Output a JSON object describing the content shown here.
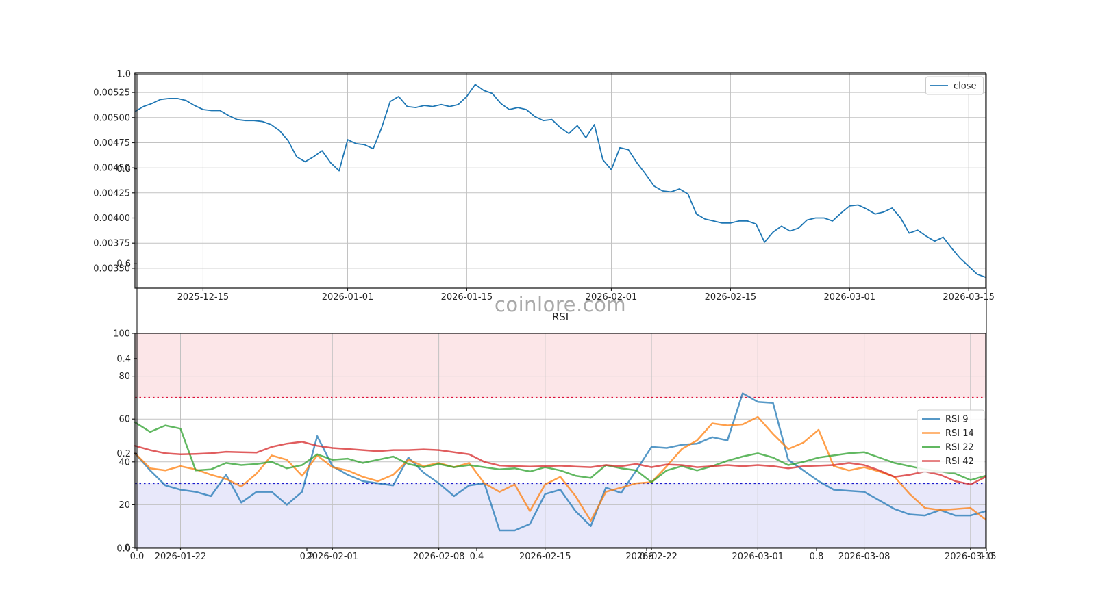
{
  "watermark": "coinlore.com",
  "colors": {
    "close": "#1f77b4",
    "rsi9": "#1f77b4",
    "rsi14": "#ff7f0e",
    "rsi22": "#2ca02c",
    "rs42": "#d62728",
    "rsi42": "#d62728",
    "overbought_band": "rgba(235,60,75,0.13)",
    "oversold_band": "rgba(80,75,220,0.13)",
    "overbought_line": "#dc143c",
    "oversold_line": "#1a1acd",
    "grid": "#c2c2c2",
    "spine": "#1b1b1b",
    "tick_text": "#262626",
    "watermark_text": "#9b9b9b",
    "legend_border": "#cccccc"
  },
  "overlay_axis": {
    "x_tick_labels": [
      "0.0",
      "0.2",
      "0.4",
      "0.6",
      "0.8",
      "1.0"
    ],
    "y_tick_labels": [
      "1.0",
      "0.8",
      "0.6",
      "0.4",
      "0.2",
      "0.0"
    ]
  },
  "chart_data": [
    {
      "type": "line",
      "title": "",
      "x_start_date": "2025-12-07",
      "x_end_date": "2026-03-16",
      "ylim": [
        0.003302,
        0.005448
      ],
      "grid": true,
      "legend": {
        "position": "upper right",
        "items": [
          {
            "label": "close",
            "color_key": "close"
          }
        ]
      },
      "y_ticks": [
        {
          "label": "0.00350",
          "value": 0.0035
        },
        {
          "label": "0.00375",
          "value": 0.00375
        },
        {
          "label": "0.00400",
          "value": 0.004
        },
        {
          "label": "0.00425",
          "value": 0.00425
        },
        {
          "label": "0.00450",
          "value": 0.0045
        },
        {
          "label": "0.00475",
          "value": 0.00475
        },
        {
          "label": "0.00500",
          "value": 0.005
        },
        {
          "label": "0.00525",
          "value": 0.00525
        }
      ],
      "x_ticks": [
        {
          "label": "2025-12-15",
          "day": 8
        },
        {
          "label": "2026-01-01",
          "day": 25
        },
        {
          "label": "2026-01-15",
          "day": 39
        },
        {
          "label": "2026-02-01",
          "day": 56
        },
        {
          "label": "2026-02-15",
          "day": 70
        },
        {
          "label": "2026-03-01",
          "day": 84
        },
        {
          "label": "2026-03-15",
          "day": 98
        }
      ],
      "series": [
        {
          "name": "close",
          "color_key": "close",
          "width": 1.8,
          "opacity": 1,
          "values": [
            0.00506,
            0.00511,
            0.00514,
            0.00518,
            0.00519,
            0.00519,
            0.00517,
            0.00512,
            0.00508,
            0.00507,
            0.00507,
            0.00502,
            0.00498,
            0.00497,
            0.00497,
            0.00496,
            0.00493,
            0.00487,
            0.00477,
            0.00461,
            0.00456,
            0.00461,
            0.00467,
            0.00455,
            0.00447,
            0.00478,
            0.00474,
            0.00473,
            0.00469,
            0.0049,
            0.00516,
            0.00521,
            0.00511,
            0.0051,
            0.00512,
            0.00511,
            0.00513,
            0.00511,
            0.00513,
            0.00521,
            0.00533,
            0.00527,
            0.00524,
            0.00514,
            0.00508,
            0.0051,
            0.00508,
            0.00501,
            0.00497,
            0.00498,
            0.0049,
            0.00484,
            0.00492,
            0.0048,
            0.00493,
            0.00458,
            0.00448,
            0.0047,
            0.00468,
            0.00455,
            0.00444,
            0.00432,
            0.00427,
            0.00426,
            0.00429,
            0.00424,
            0.00404,
            0.00399,
            0.00397,
            0.00395,
            0.00395,
            0.00397,
            0.00397,
            0.00394,
            0.00376,
            0.00386,
            0.00392,
            0.00387,
            0.0039,
            0.00398,
            0.004,
            0.004,
            0.00397,
            0.00405,
            0.00412,
            0.00413,
            0.00409,
            0.00404,
            0.00406,
            0.0041,
            0.004,
            0.00385,
            0.00388,
            0.00382,
            0.00377,
            0.00381,
            0.0037,
            0.0036,
            0.00352,
            0.00344,
            0.00341
          ]
        }
      ]
    },
    {
      "type": "line",
      "title": "RSI",
      "x_start_date": "2026-01-19",
      "x_end_date": "2026-03-16",
      "ylim": [
        0,
        100
      ],
      "grid": true,
      "overbought_level": 70,
      "oversold_level": 30,
      "legend": {
        "position": "right",
        "items": [
          {
            "label": "RSI 9",
            "color_key": "rsi9"
          },
          {
            "label": "RSI 14",
            "color_key": "rsi14"
          },
          {
            "label": "RSI 22",
            "color_key": "rsi22"
          },
          {
            "label": "RSI 42",
            "color_key": "rsi42"
          }
        ]
      },
      "y_ticks": [
        {
          "label": "0",
          "value": 0
        },
        {
          "label": "20",
          "value": 20
        },
        {
          "label": "40",
          "value": 40
        },
        {
          "label": "60",
          "value": 60
        },
        {
          "label": "80",
          "value": 80
        },
        {
          "label": "100",
          "value": 100
        }
      ],
      "x_ticks": [
        {
          "label": "2026-01-22",
          "day": 3
        },
        {
          "label": "2026-02-01",
          "day": 13
        },
        {
          "label": "2026-02-08",
          "day": 20
        },
        {
          "label": "2026-02-15",
          "day": 27
        },
        {
          "label": "2026-02-22",
          "day": 34
        },
        {
          "label": "2026-03-01",
          "day": 41
        },
        {
          "label": "2026-03-08",
          "day": 48
        },
        {
          "label": "2026-03-15",
          "day": 55
        }
      ],
      "series": [
        {
          "name": "RSI 9",
          "color_key": "rsi9",
          "width": 2.5,
          "opacity": 0.75,
          "values": [
            44,
            36,
            29,
            27,
            26,
            24,
            34,
            21,
            26,
            26,
            20,
            26,
            52,
            38,
            34,
            31,
            30,
            29,
            42,
            35,
            30,
            24,
            29,
            30,
            8,
            8,
            11,
            25,
            27,
            17,
            10,
            28,
            25.5,
            36,
            47,
            46.5,
            48,
            48.5,
            51.5,
            50,
            72,
            68,
            67.5,
            41,
            36,
            31,
            27,
            26.5,
            26,
            22,
            18,
            15.5,
            15,
            17.5,
            15,
            15,
            17
          ]
        },
        {
          "name": "RSI 14",
          "color_key": "rsi14",
          "width": 2.5,
          "opacity": 0.75,
          "values": [
            44,
            37,
            36,
            38,
            36.5,
            34,
            32,
            28.5,
            34.5,
            43,
            41,
            33.5,
            43,
            37.5,
            36,
            33,
            31,
            34,
            41,
            38,
            39.5,
            37.5,
            39.5,
            30,
            26,
            29.5,
            17,
            29.5,
            33,
            24,
            12.5,
            26,
            28,
            30,
            30.5,
            38,
            46,
            50,
            58,
            57,
            57.5,
            61,
            53,
            46,
            49,
            55,
            38,
            36,
            37.5,
            35.5,
            33,
            25,
            18.5,
            17.5,
            18,
            18.5,
            13
          ]
        },
        {
          "name": "RSI 22",
          "color_key": "rsi22",
          "width": 2.5,
          "opacity": 0.75,
          "values": [
            58.5,
            54,
            57,
            55.5,
            36,
            36.5,
            39.5,
            38.5,
            39,
            40,
            37,
            38.5,
            43.5,
            41,
            41.5,
            39.5,
            41,
            42.5,
            39,
            37.5,
            39,
            37.5,
            38.5,
            37.5,
            36.5,
            37,
            35.5,
            37.5,
            36,
            33.5,
            32.5,
            38.5,
            37,
            36,
            30.5,
            36,
            38,
            36,
            38,
            40.5,
            42.5,
            44,
            42,
            38.5,
            40,
            42,
            43,
            44,
            44.5,
            42,
            39.5,
            38,
            36.5,
            35.5,
            34.5,
            31.5,
            33.5
          ]
        },
        {
          "name": "RSI 42",
          "color_key": "rsi42",
          "width": 2.5,
          "opacity": 0.75,
          "values": [
            47.5,
            45.5,
            44,
            43.5,
            43.7,
            44,
            44.7,
            44.5,
            44.3,
            47,
            48.5,
            49.4,
            47.5,
            46.5,
            46,
            45.5,
            45,
            45.5,
            45.5,
            45.8,
            45.5,
            44.5,
            43.5,
            40,
            38.3,
            38,
            37.8,
            38,
            38.2,
            37.8,
            37.5,
            38.5,
            38,
            39,
            37.5,
            38.8,
            38.5,
            37.5,
            38,
            38.5,
            38,
            38.5,
            38,
            37,
            38,
            38.2,
            38.5,
            39.5,
            38.5,
            36,
            33,
            34,
            35.5,
            34,
            31,
            29.5,
            33
          ]
        }
      ]
    }
  ]
}
